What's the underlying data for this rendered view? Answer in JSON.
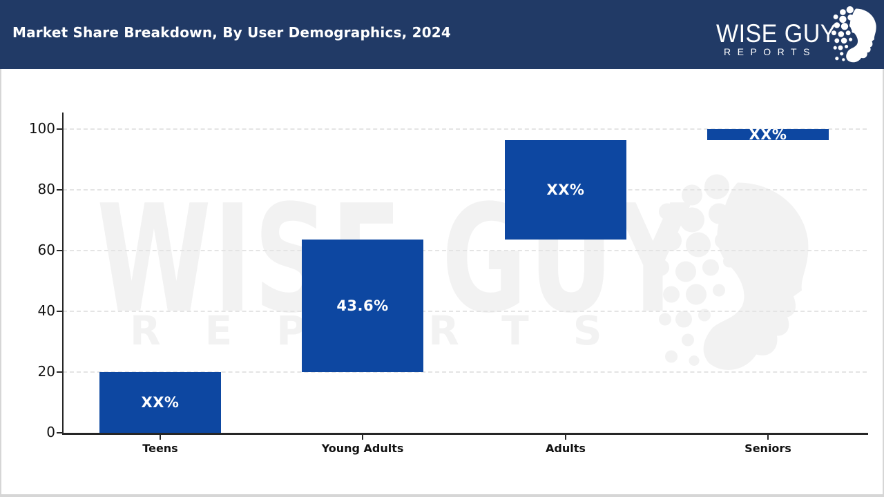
{
  "header": {
    "title": "Market Share Breakdown, By User Demographics, 2024",
    "bg_color": "#213A66",
    "logo": {
      "line1": "WISE GUY",
      "line2": "REPORTS"
    }
  },
  "watermark": {
    "line1": "WISE GUY",
    "line2": "REPORTS"
  },
  "chart_data": {
    "type": "bar",
    "subtype": "waterfall",
    "title": "Market Share Breakdown, By User Demographics, 2024",
    "categories": [
      "Teens",
      "Young Adults",
      "Adults",
      "Seniors"
    ],
    "series": [
      {
        "name": "Market Share (%)",
        "segments": [
          {
            "category": "Teens",
            "start": 0,
            "end": 20,
            "label": "XX%"
          },
          {
            "category": "Young Adults",
            "start": 20,
            "end": 63.6,
            "label": "43.6%"
          },
          {
            "category": "Adults",
            "start": 63.6,
            "end": 96.4,
            "label": "XX%"
          },
          {
            "category": "Seniors",
            "start": 96.4,
            "end": 100,
            "label": "XX%"
          }
        ]
      }
    ],
    "xlabel": "",
    "ylabel": "",
    "ylim": [
      0,
      100
    ],
    "yticks": [
      0,
      20,
      40,
      60,
      80,
      100
    ],
    "grid": "horizontal-dashed",
    "legend": "none",
    "bar_color": "#0d47a1",
    "bar_label_color": "#ffffff",
    "axis_color": "#262626",
    "gridline_color": "#e4e4e4"
  }
}
